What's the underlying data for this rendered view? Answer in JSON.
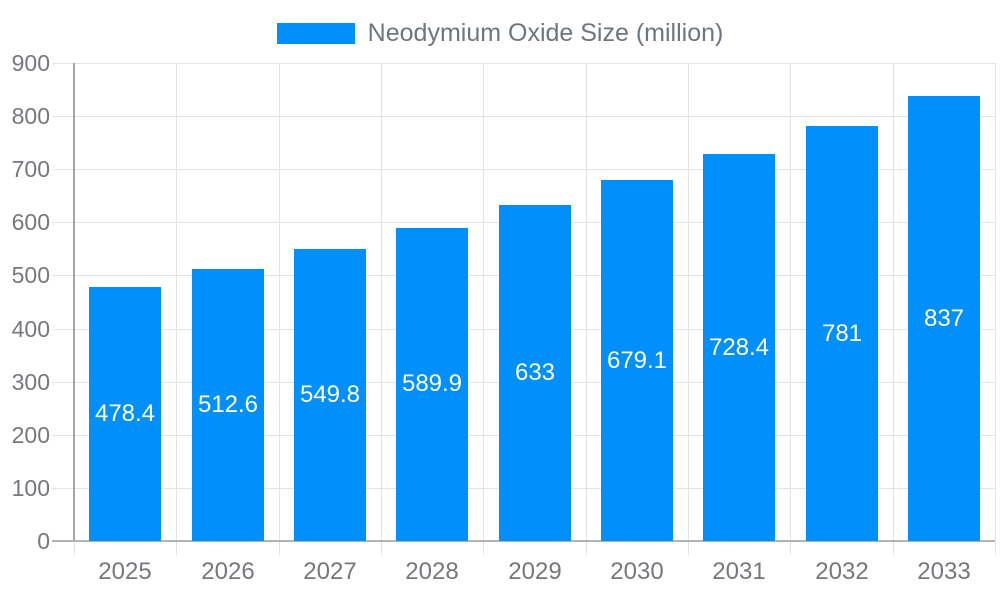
{
  "chart_data": {
    "type": "bar",
    "title": "",
    "xlabel": "",
    "ylabel": "",
    "categories": [
      "2025",
      "2026",
      "2027",
      "2028",
      "2029",
      "2030",
      "2031",
      "2032",
      "2033"
    ],
    "series": [
      {
        "name": "Neodymium Oxide Size (million)",
        "values": [
          478.4,
          512.6,
          549.8,
          589.9,
          633,
          679.1,
          728.4,
          781,
          837
        ]
      }
    ],
    "data_labels": [
      "478.4",
      "512.6",
      "549.8",
      "589.9",
      "633",
      "679.1",
      "728.4",
      "781",
      "837"
    ],
    "ylim": [
      0,
      900
    ],
    "ytick_step": 100,
    "ytick_labels": [
      "0",
      "100",
      "200",
      "300",
      "400",
      "500",
      "600",
      "700",
      "800",
      "900"
    ],
    "grid": true,
    "legend_position": "top"
  },
  "colors": {
    "bar": "#008FFB",
    "data_label": "#ffffff",
    "axis_label": "#75787c",
    "legend_label": "#6e767d",
    "gridline": "#e4e4e4",
    "axis_line": "#a6a6a6",
    "baseline": "#b3b3b3"
  }
}
